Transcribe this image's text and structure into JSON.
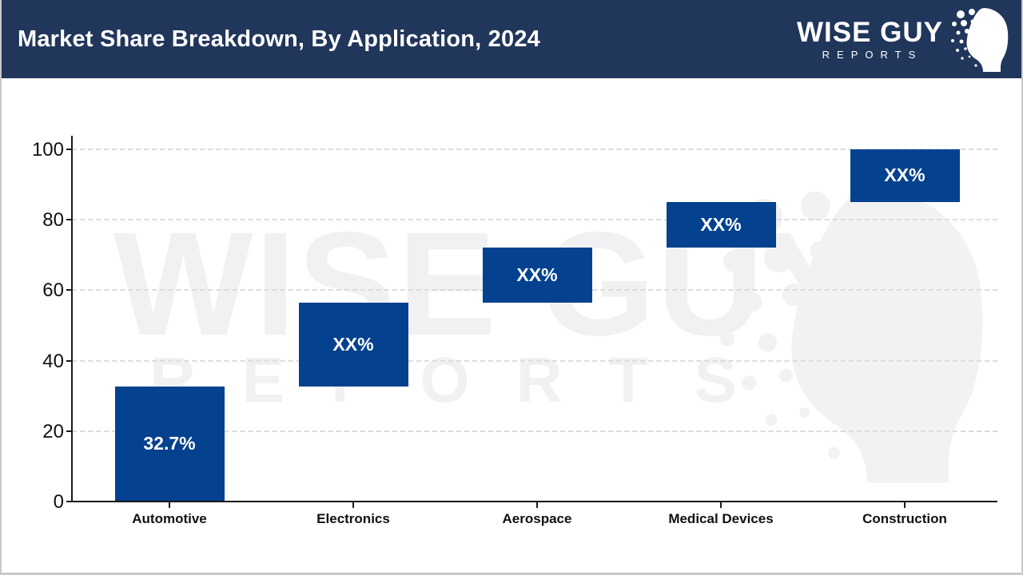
{
  "header": {
    "title": "Market Share Breakdown, By Application, 2024",
    "logo_line1": "WISE GUY",
    "logo_line2": "REPORTS",
    "bg_color": "#21365b"
  },
  "watermark": {
    "line1": "WISE GUY",
    "line2": "REPORTS"
  },
  "chart_data": {
    "type": "bar",
    "subtype": "waterfall",
    "title": "Market Share Breakdown, By Application, 2024",
    "categories": [
      "Automotive",
      "Electronics",
      "Aerospace",
      "Medical Devices",
      "Construction"
    ],
    "segments": [
      {
        "category": "Automotive",
        "start": 0,
        "end": 32.7,
        "value": 32.7,
        "label": "32.7%"
      },
      {
        "category": "Electronics",
        "start": 32.7,
        "end": 56.5,
        "value": 23.8,
        "label": "XX%"
      },
      {
        "category": "Aerospace",
        "start": 56.5,
        "end": 72.1,
        "value": 15.6,
        "label": "XX%"
      },
      {
        "category": "Medical Devices",
        "start": 72.1,
        "end": 85.1,
        "value": 13.0,
        "label": "XX%"
      },
      {
        "category": "Construction",
        "start": 85.1,
        "end": 100,
        "value": 14.9,
        "label": "XX%"
      }
    ],
    "y_ticks": [
      0,
      20,
      40,
      60,
      80,
      100
    ],
    "ylim": [
      0,
      100
    ],
    "xlabel": "",
    "ylabel": "",
    "bar_color": "#04418f",
    "value_label_color": "#ffffff",
    "grid": "horizontal-dashed",
    "grid_color": "#dcdcdc",
    "legend": "none"
  }
}
